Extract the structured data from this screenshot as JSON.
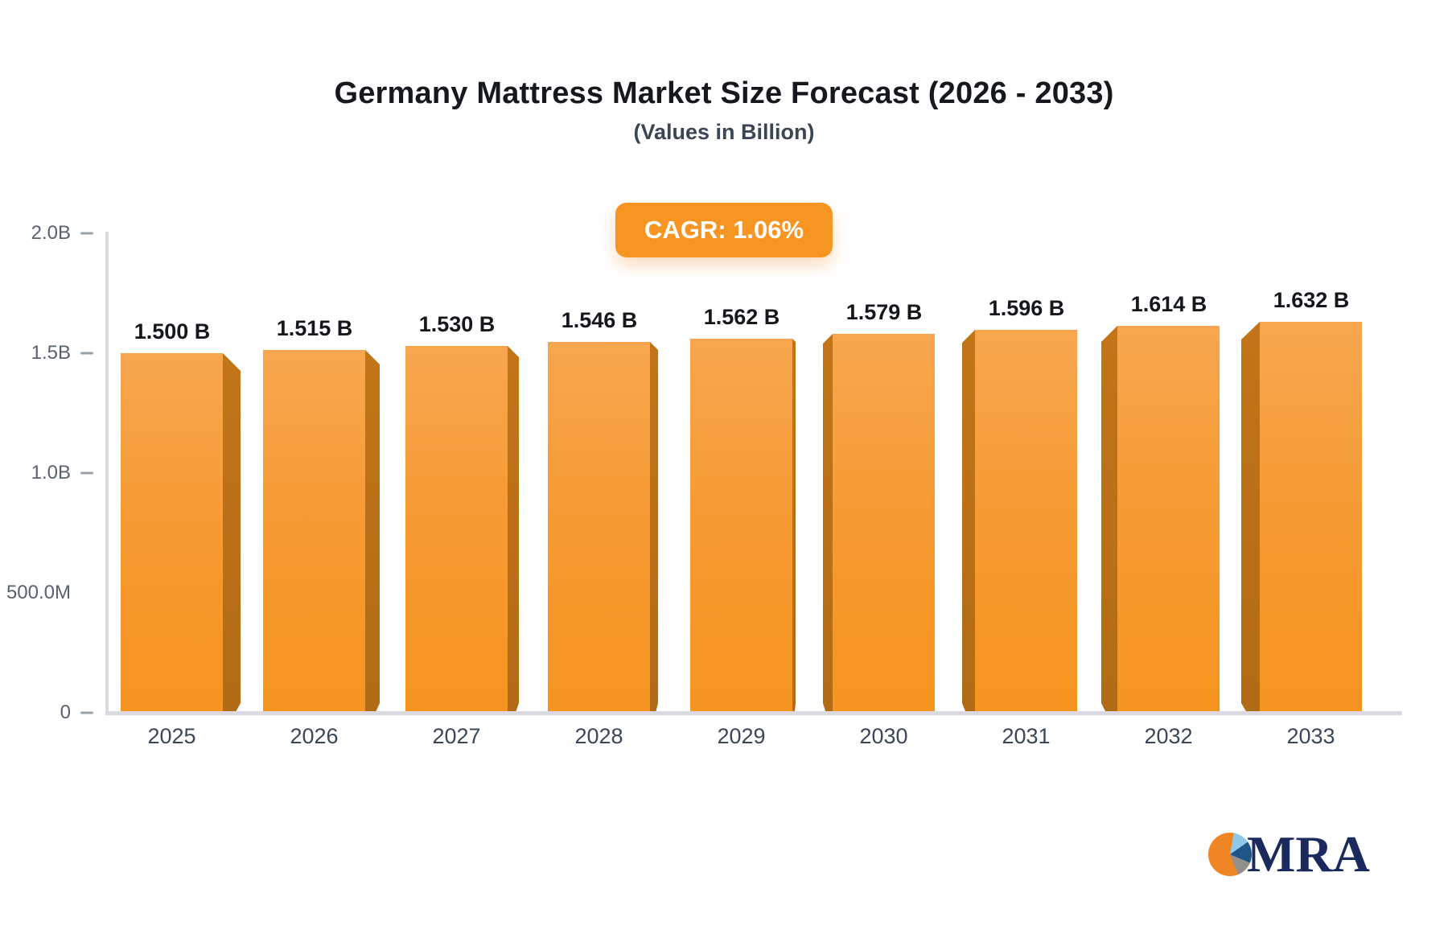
{
  "chart_data": {
    "type": "bar",
    "title": "Germany Mattress Market Size Forecast (2026 - 2033)",
    "subtitle": "(Values in Billion)",
    "cagr_badge": "CAGR: 1.06%",
    "categories": [
      "2025",
      "2026",
      "2027",
      "2028",
      "2029",
      "2030",
      "2031",
      "2032",
      "2033"
    ],
    "values": [
      1.5,
      1.515,
      1.53,
      1.546,
      1.562,
      1.579,
      1.596,
      1.614,
      1.632
    ],
    "value_labels": [
      "1.500 B",
      "1.515 B",
      "1.530 B",
      "1.546 B",
      "1.562 B",
      "1.579 B",
      "1.596 B",
      "1.614 B",
      "1.632 B"
    ],
    "unit": "Billion",
    "xlabel": "",
    "ylabel": "",
    "ylim": [
      0,
      2.0
    ],
    "y_ticks": [
      {
        "label": "2.0B",
        "value": 2.0,
        "tick": true
      },
      {
        "label": "1.5B",
        "value": 1.5,
        "tick": true
      },
      {
        "label": "1.0B",
        "value": 1.0,
        "tick": true
      },
      {
        "label": "500.0M",
        "value": 0.5,
        "tick": false
      },
      {
        "label": "0",
        "value": 0.0,
        "tick": true
      }
    ],
    "grid": false,
    "legend": false,
    "bar_color": "#F7941E",
    "bar_side_color": "#B46C1A"
  },
  "branding": {
    "logo_text": "MRA",
    "logo_colors": {
      "orange": "#EF8525",
      "light_blue": "#8FC9E9",
      "navy": "#205687",
      "gray": "#92908D",
      "text": "#1A2A5C"
    }
  },
  "colors": {
    "accent": "#F79522",
    "axis": "#D9D9DF",
    "y_label": "#59626F",
    "x_label": "#3A475A",
    "title": "#15181D"
  }
}
